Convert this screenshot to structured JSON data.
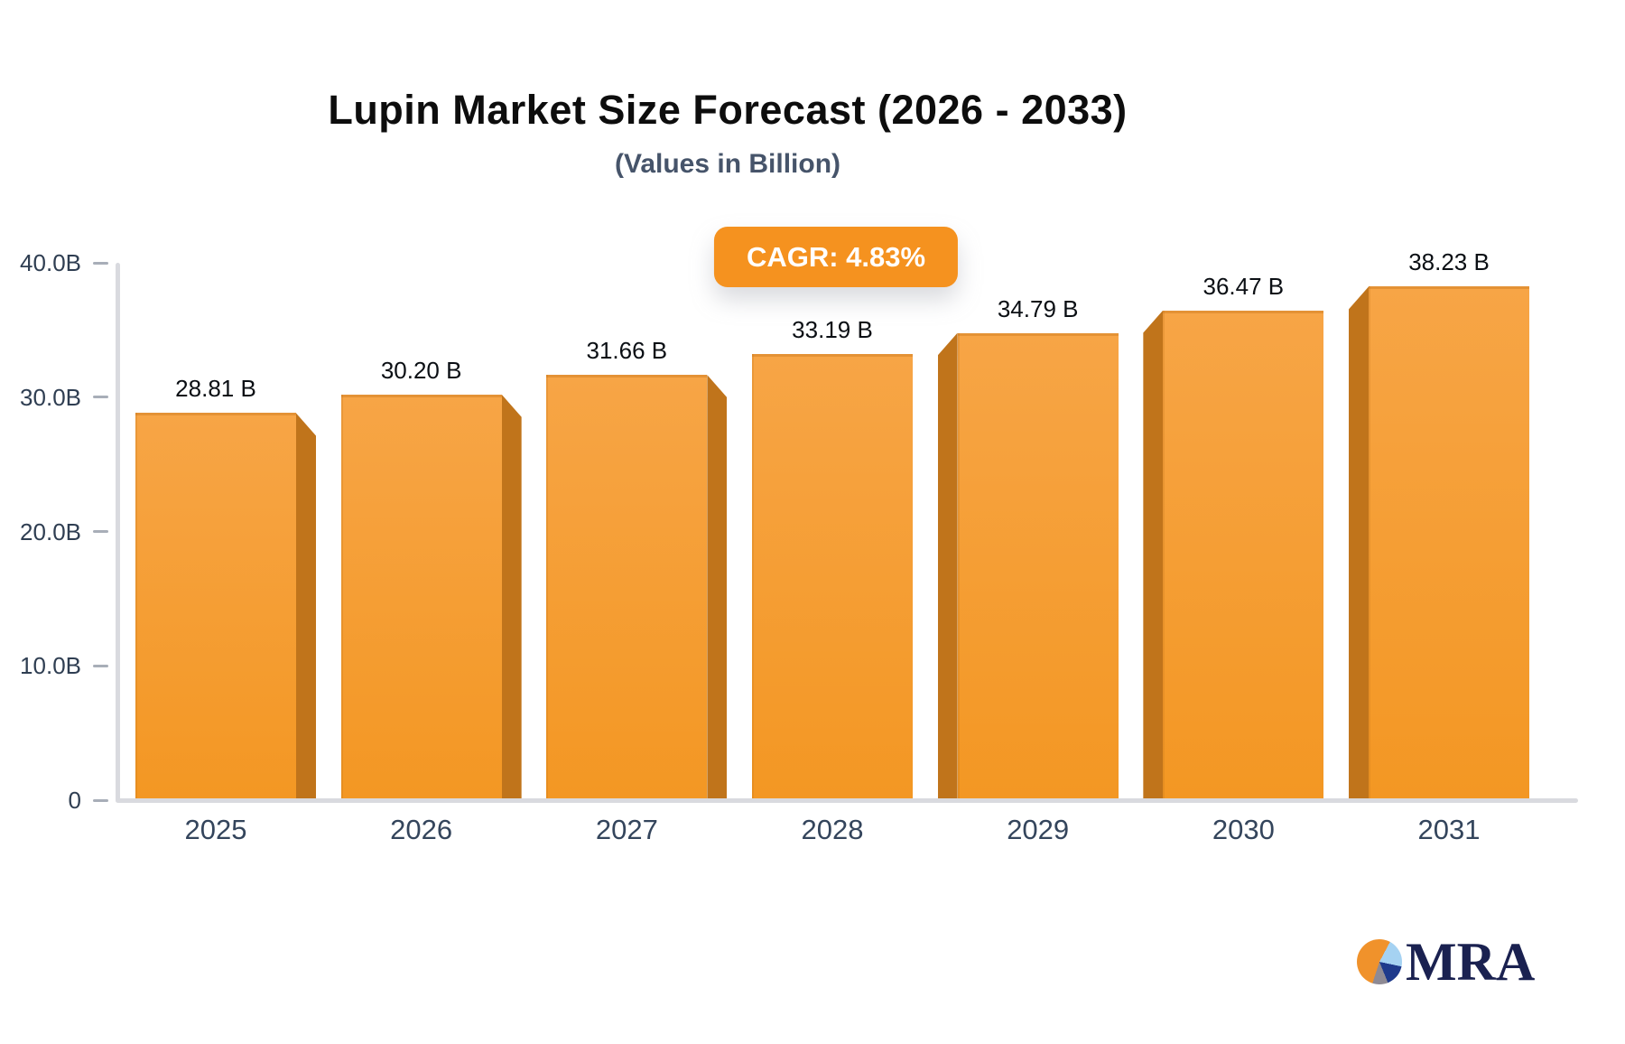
{
  "header": {
    "title": "Lupin Market Size Forecast (2026 - 2033)",
    "subtitle": "(Values in Billion)"
  },
  "badge": {
    "label": "CAGR: 4.83%",
    "bg_color": "#F5921F",
    "text_color": "#FFFFFF"
  },
  "chart_data": {
    "type": "bar",
    "style": "3d-perspective-bars",
    "title": "Lupin Market Size Forecast (2026 - 2033)",
    "subtitle": "(Values in Billion)",
    "unit": "Billion (B)",
    "cagr_annotation": "CAGR: 4.83%",
    "categories": [
      "2025",
      "2026",
      "2027",
      "2028",
      "2029",
      "2030",
      "2031"
    ],
    "values": [
      28.81,
      30.2,
      31.66,
      33.19,
      34.79,
      36.47,
      38.23
    ],
    "data_labels": [
      "28.81 B",
      "30.20 B",
      "31.66 B",
      "33.19 B",
      "34.79 B",
      "36.47 B",
      "38.23 B"
    ],
    "ylim": [
      0,
      40
    ],
    "yticks": [
      {
        "value": 0,
        "label": "0"
      },
      {
        "value": 10,
        "label": "10.0B"
      },
      {
        "value": 20,
        "label": "20.0B"
      },
      {
        "value": 30,
        "label": "30.0B"
      },
      {
        "value": 40,
        "label": "40.0B"
      }
    ],
    "grid": false,
    "legend": false,
    "colors": {
      "bar_face_top": "#F7A546",
      "bar_face_bottom": "#F39723",
      "bar_side": "#C0741B",
      "axis_line": "#D9DADF",
      "tick_dash": "#A8AEB8",
      "value_label": "#0B0F14",
      "axis_label": "#2F3E52"
    }
  },
  "logo": {
    "text": "MRA",
    "text_color": "#1A2150",
    "pie_colors": [
      "#F0922B",
      "#A5D2F2",
      "#1E3A8C",
      "#8E8A94"
    ]
  }
}
